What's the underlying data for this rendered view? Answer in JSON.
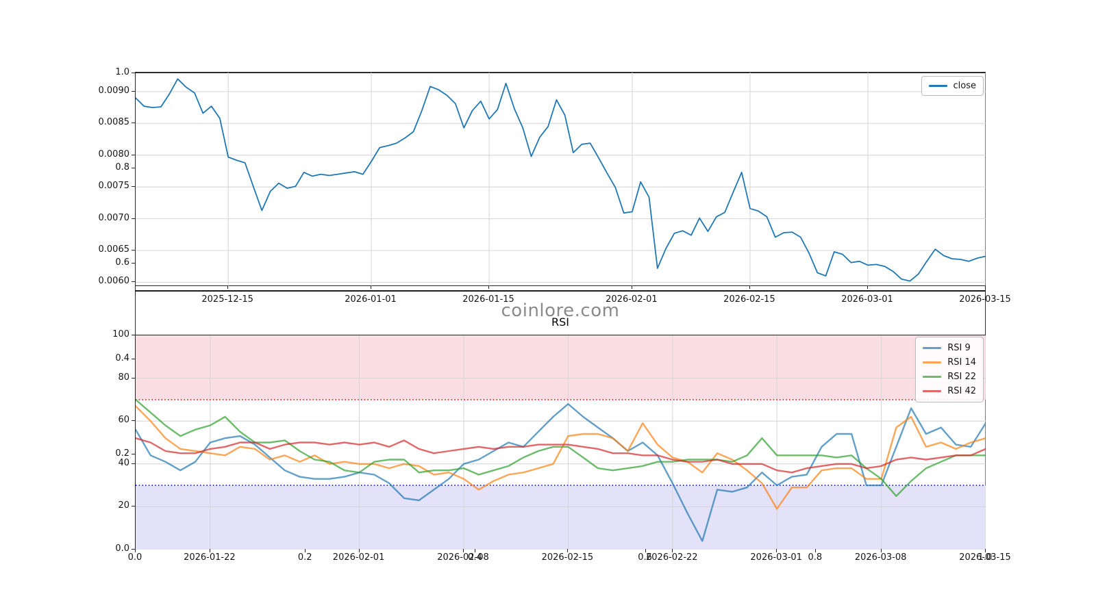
{
  "watermark": "coinlore.com",
  "overlay_axis": {
    "y_tick_labels": [
      "1.0",
      "0.8",
      "0.6",
      "0.4",
      "0.2",
      "0.0"
    ],
    "x_tick_labels": [
      "0.0",
      "0.2",
      "0.4",
      "0.6",
      "0.8",
      "1.0"
    ]
  },
  "chart_data": [
    {
      "type": "line",
      "title": "",
      "legend_position": "upper right",
      "grid": true,
      "x_start_date": "2025-12-04",
      "x_end_date": "2026-03-15",
      "x_tick_labels": [
        "2025-12-15",
        "2026-01-01",
        "2026-01-15",
        "2026-02-01",
        "2026-02-15",
        "2026-03-01",
        "2026-03-15"
      ],
      "x_tick_day_index": [
        11,
        28,
        42,
        59,
        73,
        87,
        101
      ],
      "y_tick_labels": [
        "0.0060",
        "0.0065",
        "0.0070",
        "0.0075",
        "0.0080",
        "0.0085",
        "0.0090"
      ],
      "y_ticks": [
        0.006,
        0.0065,
        0.007,
        0.0075,
        0.008,
        0.0085,
        0.009
      ],
      "ylim": [
        0.00594,
        0.0093
      ],
      "series": [
        {
          "name": "close",
          "color": "#1f77b4",
          "opacity": 1,
          "width": 1.8,
          "values": [
            0.0089,
            0.00877,
            0.00875,
            0.00876,
            0.00896,
            0.0092,
            0.00907,
            0.00898,
            0.00866,
            0.00877,
            0.00858,
            0.00797,
            0.00792,
            0.00788,
            0.0075,
            0.00713,
            0.00743,
            0.00756,
            0.00748,
            0.00751,
            0.00773,
            0.00767,
            0.0077,
            0.00768,
            0.0077,
            0.00772,
            0.00774,
            0.0077,
            0.0079,
            0.00812,
            0.00815,
            0.00819,
            0.00827,
            0.00837,
            0.0087,
            0.00908,
            0.00903,
            0.00894,
            0.00881,
            0.00843,
            0.0087,
            0.00885,
            0.00857,
            0.00872,
            0.00913,
            0.00873,
            0.00843,
            0.00798,
            0.00828,
            0.00845,
            0.00887,
            0.00863,
            0.00804,
            0.00817,
            0.00819,
            0.00796,
            0.00772,
            0.00749,
            0.00709,
            0.00711,
            0.00758,
            0.00734,
            0.00622,
            0.00653,
            0.00677,
            0.00681,
            0.00674,
            0.00701,
            0.0068,
            0.00703,
            0.0071,
            0.00742,
            0.00773,
            0.00716,
            0.00712,
            0.00703,
            0.00671,
            0.00678,
            0.00679,
            0.00671,
            0.00646,
            0.00615,
            0.0061,
            0.00648,
            0.00644,
            0.00631,
            0.00633,
            0.00627,
            0.00628,
            0.00625,
            0.00617,
            0.00605,
            0.00602,
            0.00613,
            0.00633,
            0.00652,
            0.00642,
            0.00637,
            0.00636,
            0.00633,
            0.00638,
            0.00641
          ]
        }
      ]
    },
    {
      "type": "line",
      "title": "RSI",
      "legend_position": "upper right",
      "grid": true,
      "x_start_date": "2026-01-17",
      "x_end_date": "2026-03-15",
      "x_tick_labels": [
        "2026-01-22",
        "2026-02-01",
        "2026-02-08",
        "2026-02-15",
        "2026-02-22",
        "2026-03-01",
        "2026-03-08",
        "2026-03-15"
      ],
      "x_tick_day_index": [
        5,
        15,
        22,
        29,
        36,
        43,
        50,
        57
      ],
      "y_tick_labels": [
        "20",
        "40",
        "60",
        "80",
        "100"
      ],
      "y_ticks": [
        20,
        40,
        60,
        80,
        100
      ],
      "ylim": [
        0,
        100
      ],
      "bands": [
        {
          "name": "overbought-zone",
          "from": 70,
          "to": 100,
          "color": "#fbdee3"
        },
        {
          "name": "oversold-zone",
          "from": 0,
          "to": 30,
          "color": "#e3e2f8"
        }
      ],
      "hlines": [
        {
          "name": "overbought-threshold",
          "value": 70,
          "color": "#ff0000"
        },
        {
          "name": "oversold-threshold",
          "value": 30,
          "color": "#0000ff"
        }
      ],
      "series": [
        {
          "name": "RSI 9",
          "color": "#1f77b4",
          "opacity": 0.7,
          "width": 2.4,
          "values": [
            56,
            44,
            41,
            37,
            41,
            50,
            52,
            53,
            49,
            43,
            37,
            34,
            33,
            33,
            34,
            36,
            35,
            31,
            24,
            23,
            28,
            33,
            40,
            42,
            46,
            50,
            48,
            55,
            62,
            68,
            62,
            57,
            52,
            46,
            50,
            44,
            31,
            17,
            4,
            28,
            27,
            29,
            36,
            30,
            34,
            35,
            48,
            54,
            54,
            30,
            30,
            48,
            66,
            54,
            57,
            49,
            48,
            59
          ]
        },
        {
          "name": "RSI 14",
          "color": "#ff7f0e",
          "opacity": 0.7,
          "width": 2.4,
          "values": [
            67,
            60,
            52,
            47,
            46,
            45,
            44,
            48,
            47,
            42,
            44,
            41,
            44,
            40,
            41,
            40,
            40,
            38,
            40,
            39,
            35,
            36,
            33,
            28,
            32,
            35,
            36,
            38,
            40,
            53,
            54,
            54,
            52,
            46,
            59,
            49,
            43,
            41,
            36,
            45,
            42,
            37,
            31,
            19,
            29,
            29,
            37,
            38,
            38,
            33,
            33,
            57,
            62,
            48,
            50,
            47,
            50,
            52
          ]
        },
        {
          "name": "RSI 22",
          "color": "#2ca02c",
          "opacity": 0.7,
          "width": 2.4,
          "values": [
            70,
            64,
            58,
            53,
            56,
            58,
            62,
            55,
            50,
            50,
            51,
            46,
            42,
            41,
            37,
            36,
            41,
            42,
            42,
            36,
            37,
            37,
            38,
            35,
            37,
            39,
            43,
            46,
            48,
            48,
            43,
            38,
            37,
            38,
            39,
            41,
            41,
            42,
            42,
            42,
            41,
            44,
            52,
            44,
            44,
            44,
            44,
            43,
            44,
            38,
            33,
            25,
            32,
            38,
            41,
            44,
            44,
            44
          ]
        },
        {
          "name": "RSI 42",
          "color": "#d62728",
          "opacity": 0.7,
          "width": 2.4,
          "values": [
            52,
            50,
            46,
            45,
            45,
            47,
            48,
            50,
            50,
            47,
            49,
            50,
            50,
            49,
            50,
            49,
            50,
            48,
            51,
            47,
            45,
            46,
            47,
            48,
            47,
            48,
            48,
            49,
            49,
            49,
            48,
            47,
            45,
            45,
            44,
            44,
            42,
            41,
            41,
            42,
            40,
            40,
            40,
            37,
            36,
            38,
            39,
            40,
            40,
            38,
            39,
            42,
            43,
            42,
            43,
            44,
            44,
            47
          ]
        }
      ]
    }
  ]
}
